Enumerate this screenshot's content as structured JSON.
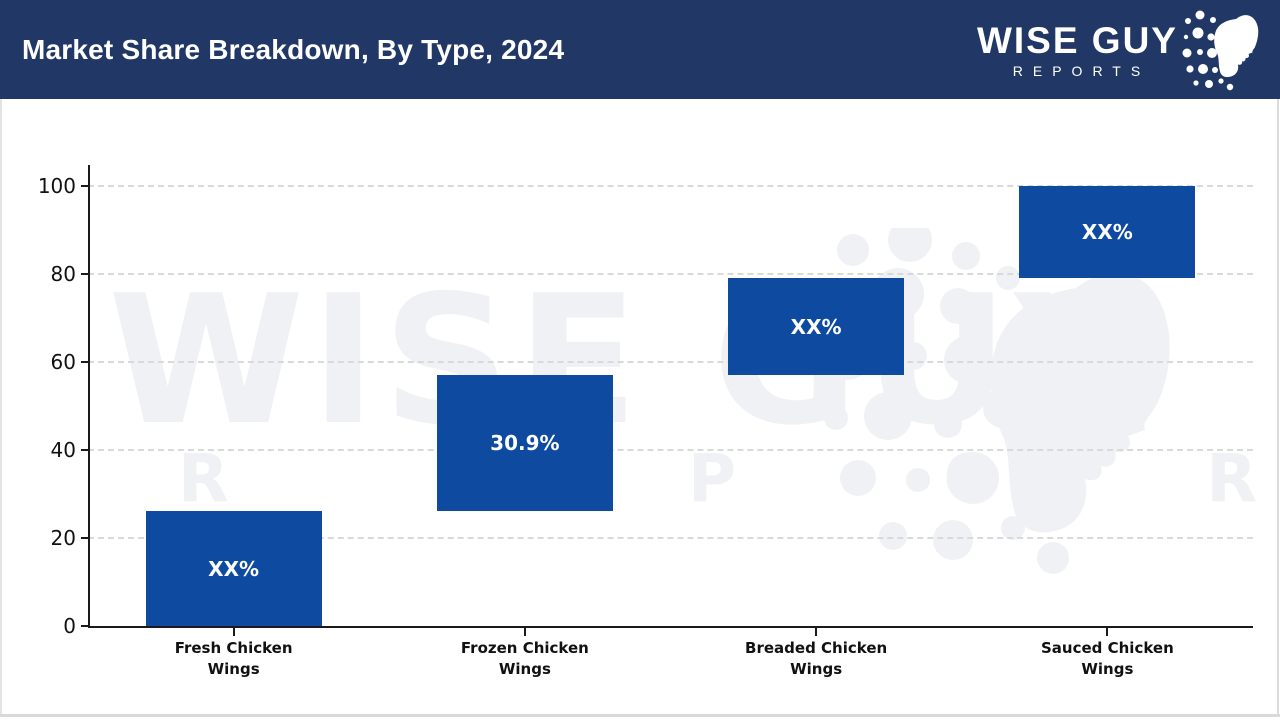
{
  "header": {
    "title": "Market Share Breakdown, By Type, 2024",
    "logo": {
      "line1": "WISE GUY",
      "line2": "REPORTS",
      "face_icon": "face-profile-dots"
    }
  },
  "watermark": {
    "line1": "WISE GUY",
    "line2": "R E P O R T S",
    "face_icon": "face-profile-dots"
  },
  "chart_data": {
    "type": "bar",
    "subtype": "floating-waterfall",
    "title": "Market Share Breakdown, By Type, 2024",
    "categories": [
      [
        "Fresh Chicken",
        "Wings"
      ],
      [
        "Frozen Chicken",
        "Wings"
      ],
      [
        "Breaded Chicken",
        "Wings"
      ],
      [
        "Sauced Chicken",
        "Wings"
      ]
    ],
    "series": [
      {
        "name": "Fresh Chicken Wings",
        "start": 0,
        "end": 26.1,
        "label": "XX%"
      },
      {
        "name": "Frozen Chicken Wings",
        "start": 26.1,
        "end": 57.0,
        "label": "30.9%"
      },
      {
        "name": "Breaded Chicken Wings",
        "start": 57.0,
        "end": 79.1,
        "label": "XX%"
      },
      {
        "name": "Sauced Chicken Wings",
        "start": 79.1,
        "end": 100,
        "label": "XX%"
      }
    ],
    "xlabel": "",
    "ylabel": "",
    "ylim": [
      0,
      100
    ],
    "yticks": [
      0,
      20,
      40,
      60,
      80,
      100
    ],
    "grid": "horizontal-dashed",
    "legend": "none"
  },
  "colors": {
    "header_bg": "#213766",
    "bar": "#0d4aa0",
    "bar_label": "#ffffff",
    "gridline": "#d9d9d9",
    "axis": "#1a1a1a",
    "watermark": "#f0f1f4"
  }
}
